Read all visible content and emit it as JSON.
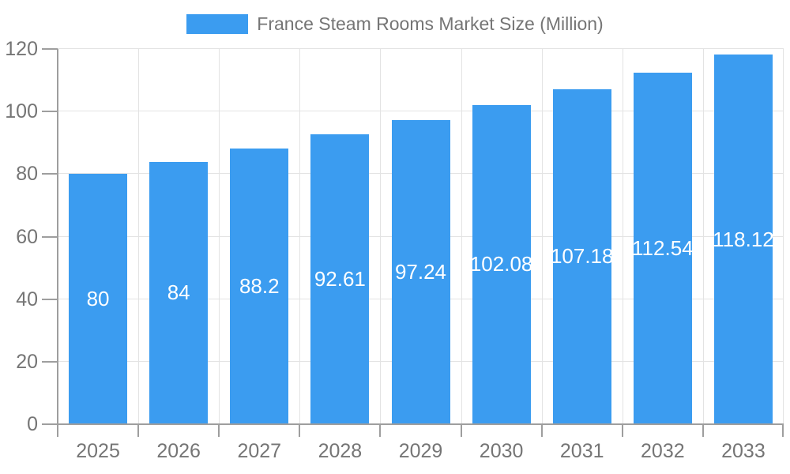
{
  "legend": {
    "label": "France Steam Rooms Market Size (Million)"
  },
  "colors": {
    "bar": "#3B9CF0",
    "axis": "#9E9E9E",
    "grid": "#E3E3E3",
    "text": "#757575",
    "value_label": "#FFFFFF",
    "background": "#FFFFFF"
  },
  "chart_data": {
    "type": "bar",
    "title": "France Steam Rooms Market Size (Million)",
    "categories": [
      "2025",
      "2026",
      "2027",
      "2028",
      "2029",
      "2030",
      "2031",
      "2032",
      "2033"
    ],
    "series": [
      {
        "name": "France Steam Rooms Market Size (Million)",
        "values": [
          80,
          84,
          88.2,
          92.61,
          97.24,
          102.08,
          107.18,
          112.54,
          118.12
        ]
      }
    ],
    "value_labels": [
      "80",
      "84",
      "88.2",
      "92.61",
      "97.24",
      "102.08",
      "107.18",
      "112.54",
      "118.12"
    ],
    "xlabel": "",
    "ylabel": "",
    "ylim": [
      0,
      120
    ],
    "y_ticks": [
      0,
      20,
      40,
      60,
      80,
      100,
      120
    ],
    "grid": "horizontal-and-vertical",
    "legend_position": "top-center",
    "value_label_position": "inside-center"
  }
}
